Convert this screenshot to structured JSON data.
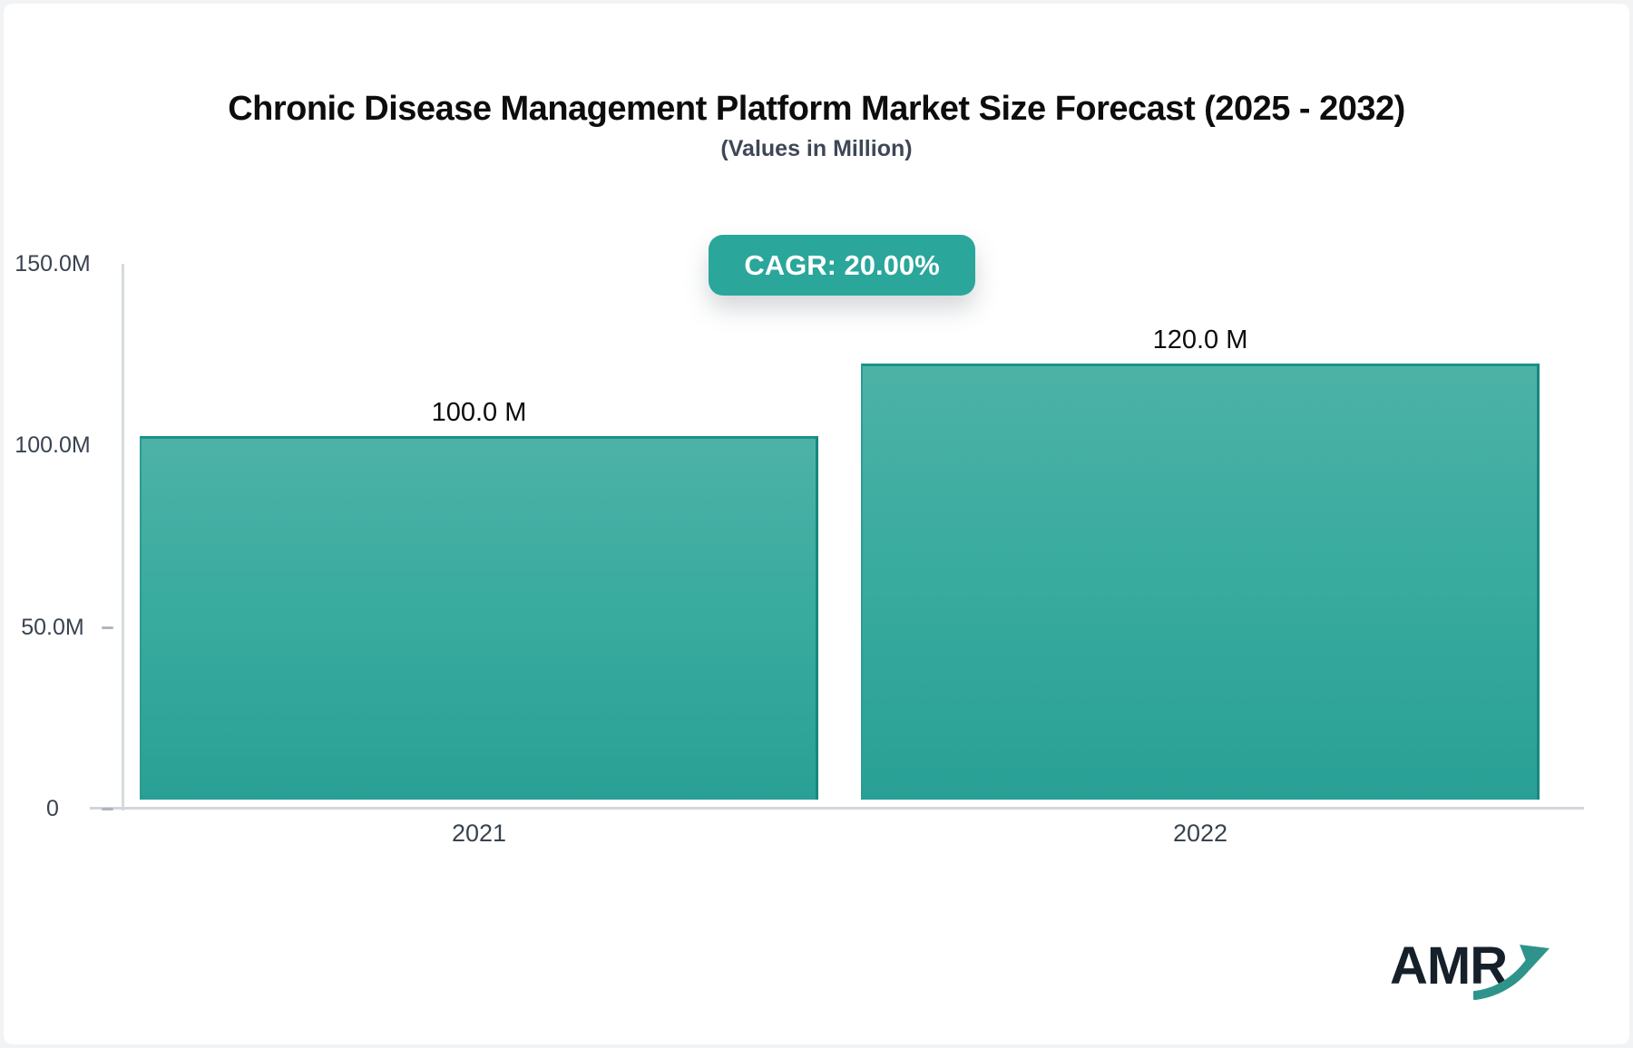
{
  "page": {
    "title": "Chronic Disease Management Platform Market Size Forecast (2025 - 2032)",
    "subtitle": "(Values in Million)",
    "badge_label": "CAGR: 20.00%"
  },
  "chart_data": {
    "type": "bar",
    "title": "Chronic Disease Management Platform Market Size Forecast (2025 - 2032)",
    "subtitle": "(Values in Million)",
    "cagr_percent": "20.00%",
    "unit": "Million",
    "categories": [
      "2021",
      "2022"
    ],
    "values": [
      100.0,
      120.0
    ],
    "value_labels": [
      "100.0 M",
      "120.0 M"
    ],
    "xlabel": "",
    "ylabel": "",
    "ylim": [
      0,
      150
    ],
    "grid": false,
    "legend": false,
    "y_ticks": [
      {
        "label": "150.0M",
        "value": 150,
        "tick_visible": false
      },
      {
        "label": "100.0M",
        "value": 100,
        "tick_visible": false
      },
      {
        "label": "50.0M",
        "value": 50,
        "tick_visible": true
      },
      {
        "label": "0",
        "value": 0,
        "tick_visible": true
      }
    ]
  },
  "branding": {
    "logo_text": "AMR"
  },
  "colors": {
    "accent_teal": "#2aa69b",
    "bar_gradient_top": "#4db2a7",
    "bar_gradient_bottom": "#29a095",
    "bar_border": "#1b9287",
    "axis_line": "#d6dade",
    "tick_dash": "#b0b5bd",
    "axis_label": "#3a4350",
    "title_text": "#0d0d0d",
    "subtitle_text": "#3e4756",
    "badge_text": "#ffffff",
    "logo_text": "#15202a",
    "logo_arrow": "#2e948b"
  }
}
